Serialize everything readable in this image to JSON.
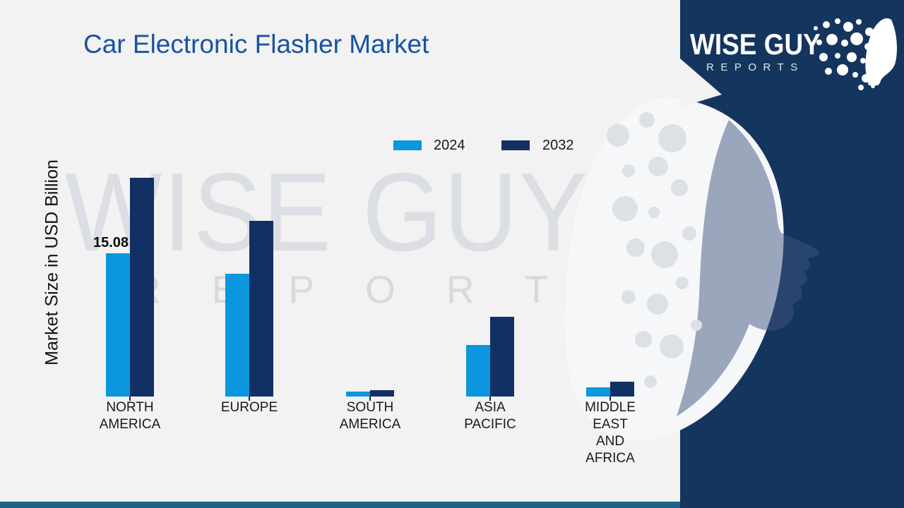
{
  "title": "Car Electronic Flasher Market",
  "logo": {
    "brand": "WISE GUY",
    "sub": "REPORTS"
  },
  "watermark": {
    "brand": "WISE GUY",
    "sub": "REPORTS"
  },
  "colors": {
    "background": "#f1f2f1",
    "title": "#1a52a2",
    "bar_2024": "#0b96dd",
    "bar_2032": "#113064",
    "panel_navy": "#14355e",
    "footer_teal": "#1b6285",
    "watermark": "#dbdee3"
  },
  "chart_data": {
    "type": "bar",
    "title": "Car Electronic Flasher Market",
    "xlabel": "",
    "ylabel": "Market Size in USD Billion",
    "categories": [
      "NORTH\nAMERICA",
      "EUROPE",
      "SOUTH\nAMERICA",
      "ASIA\nPACIFIC",
      "MIDDLE\nEAST\nAND\nAFRICA"
    ],
    "series": [
      {
        "name": "2024",
        "color": "#0b96dd",
        "values": [
          15.08,
          12.9,
          0.5,
          5.4,
          1.0
        ]
      },
      {
        "name": "2032",
        "color": "#113064",
        "values": [
          23.0,
          18.5,
          0.7,
          8.4,
          1.55
        ]
      }
    ],
    "annotations": [
      {
        "text": "15.08",
        "series": "2024",
        "category_index": 0
      }
    ],
    "legend_position": "top-center",
    "grid": false,
    "ylim": [
      0,
      24
    ]
  }
}
